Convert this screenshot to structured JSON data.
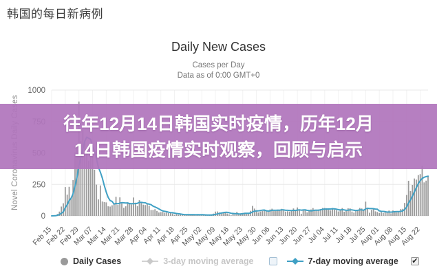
{
  "page": {
    "header": "韩国的每日新病例"
  },
  "chart": {
    "title": "Daily New Cases",
    "subtitle1": "Cases per Day",
    "subtitle2": "Data as of 0:00 GMT+0",
    "y_axis_title": "Novel Coronavirus Daily Cases",
    "legend": {
      "daily_cases_label": "Daily Cases",
      "ma3_label": "3-day moving average",
      "ma7_label": "7-day moving average",
      "ma3_checked": false,
      "ma7_checked": true,
      "checkmark": "✔"
    },
    "colors": {
      "bar": "#9b9b9b",
      "ma7_line": "#3fa0c4",
      "ma3_disabled": "#cccccc",
      "grid": "#e8e8e8",
      "grid_vertical": "#f2f2f2",
      "tick_text": "#666666",
      "overlay_purple": "#b075bc"
    }
  },
  "overlay": {
    "line1": "往年12月14日韩国实时疫情，历年12月",
    "line2": "14日韩国疫情实时观察，回顾与启示"
  },
  "chart_data": {
    "type": "bar",
    "title": "Daily New Cases",
    "xlabel": "",
    "ylabel": "Novel Coronavirus Daily Cases",
    "ylim": [
      0,
      1000
    ],
    "yticks": [
      0,
      250,
      500,
      750,
      1000
    ],
    "grid": true,
    "legend_position": "bottom",
    "start_label": "Feb 15",
    "tick_every_days": 7,
    "x_tick_labels": [
      "Feb 15",
      "Feb 22",
      "Feb 29",
      "Mar 07",
      "Mar 14",
      "Mar 21",
      "Mar 28",
      "Apr 04",
      "Apr 11",
      "Apr 18",
      "Apr 25",
      "May 02",
      "May 09",
      "May 16",
      "May 23",
      "May 30",
      "Jun 06",
      "Jun 13",
      "Jun 20",
      "Jun 27",
      "Jul 04",
      "Jul 11",
      "Jul 18",
      "Jul 25",
      "Aug 01",
      "Aug 08",
      "Aug 15",
      "Aug 22"
    ],
    "series": [
      {
        "name": "Daily Cases",
        "type": "bar",
        "visible": true,
        "values": [
          0,
          1,
          2,
          15,
          34,
          74,
          100,
          229,
          169,
          231,
          144,
          284,
          505,
          571,
          909,
          595,
          686,
          600,
          516,
          438,
          518,
          483,
          367,
          248,
          131,
          242,
          114,
          110,
          107,
          76,
          74,
          84,
          93,
          152,
          87,
          147,
          98,
          64,
          76,
          100,
          104,
          91,
          146,
          105,
          78,
          125,
          101,
          89,
          86,
          94,
          81,
          47,
          47,
          53,
          39,
          27,
          30,
          32,
          25,
          27,
          22,
          22,
          18,
          8,
          13,
          9,
          11,
          8,
          6,
          10,
          10,
          10,
          14,
          9,
          4,
          9,
          6,
          13,
          8,
          3,
          2,
          4,
          12,
          18,
          34,
          35,
          27,
          26,
          29,
          27,
          19,
          13,
          5,
          15,
          13,
          32,
          12,
          20,
          23,
          25,
          16,
          19,
          40,
          79,
          58,
          39,
          27,
          35,
          38,
          49,
          39,
          39,
          51,
          57,
          38,
          38,
          50,
          45,
          56,
          48,
          34,
          37,
          34,
          43,
          59,
          49,
          67,
          48,
          17,
          46,
          51,
          28,
          39,
          51,
          62,
          42,
          43,
          51,
          54,
          63,
          63,
          61,
          48,
          44,
          63,
          50,
          45,
          35,
          44,
          62,
          33,
          39,
          61,
          60,
          34,
          26,
          45,
          45,
          63,
          59,
          41,
          113,
          58,
          25,
          48,
          59,
          36,
          31,
          23,
          30,
          23,
          34,
          33,
          43,
          20,
          43,
          36,
          28,
          34,
          54,
          56,
          103,
          166,
          279,
          197,
          246,
          297,
          288,
          324,
          332,
          397,
          266,
          280,
          320
        ]
      },
      {
        "name": "3-day moving average",
        "type": "line",
        "visible": false,
        "derived_from": "Daily Cases",
        "window": 3
      },
      {
        "name": "7-day moving average",
        "type": "line",
        "visible": true,
        "derived_from": "Daily Cases",
        "window": 7
      }
    ]
  }
}
